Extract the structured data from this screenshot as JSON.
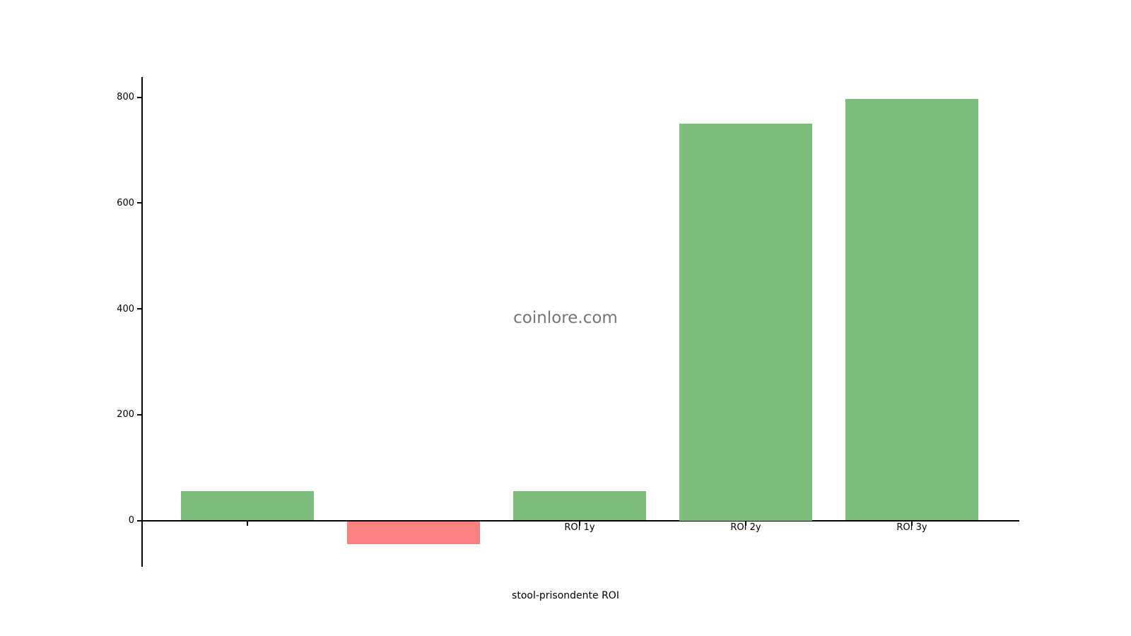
{
  "watermark": "coinlore.com",
  "chart_data": {
    "type": "bar",
    "categories": [
      "",
      "",
      "ROI 1y",
      "ROI 2y",
      "ROI 3y"
    ],
    "values": [
      56,
      -43,
      56,
      750,
      797
    ],
    "title": "",
    "xlabel": "stool-prisondente ROI",
    "ylabel": "",
    "yticks": [
      0,
      200,
      400,
      600,
      800
    ],
    "ylim": [
      -75,
      845
    ],
    "grid": false,
    "legend": null,
    "bar_colors": {
      "positive": "#7dbe7d",
      "negative": "#fc8181"
    },
    "axis_color": "#000000",
    "text_color": "#000000",
    "watermark_color": "#757575"
  }
}
